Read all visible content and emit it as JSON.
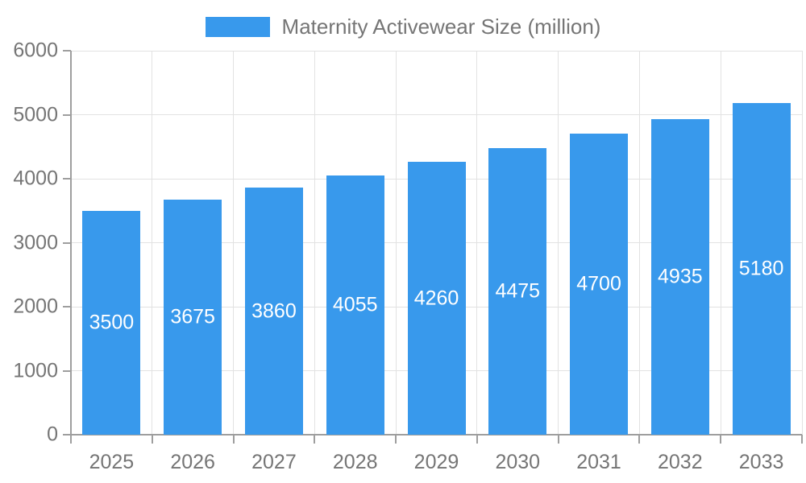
{
  "legend": {
    "label": "Maternity Activewear Size (million)"
  },
  "chart_data": {
    "type": "bar",
    "title": "Maternity Activewear Size (million)",
    "categories": [
      "2025",
      "2026",
      "2027",
      "2028",
      "2029",
      "2030",
      "2031",
      "2032",
      "2033"
    ],
    "values": [
      3500,
      3675,
      3860,
      4055,
      4260,
      4475,
      4700,
      4935,
      5180
    ],
    "series": [
      {
        "name": "Maternity Activewear Size (million)",
        "values": [
          3500,
          3675,
          3860,
          4055,
          4260,
          4475,
          4700,
          4935,
          5180
        ]
      }
    ],
    "xlabel": "",
    "ylabel": "",
    "ylim": [
      0,
      6000
    ],
    "yticks": [
      0,
      1000,
      2000,
      3000,
      4000,
      5000,
      6000
    ],
    "grid": true,
    "bar_labels_inside": true,
    "legend_position": "top-center",
    "colors": {
      "bar": "#3899EC",
      "bar_label": "#FFFFFF",
      "axis_text": "#757575",
      "gridline": "#E2E2E2",
      "axis_line": "#9E9E9E",
      "background": "#FFFFFF"
    }
  }
}
